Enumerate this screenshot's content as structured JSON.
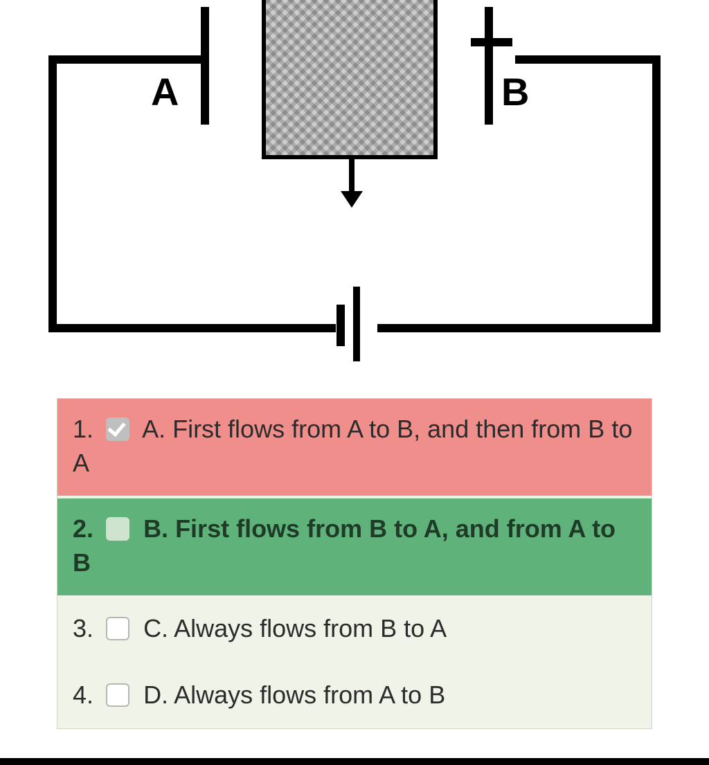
{
  "diagram": {
    "label_left": "A",
    "label_right": "B"
  },
  "answers": {
    "options": [
      {
        "number": "1.",
        "text": "A. First flows from A to B, and then from B to A",
        "state": "selected-wrong"
      },
      {
        "number": "2.",
        "text": "B. First flows from B to A, and from A to B",
        "state": "correct"
      },
      {
        "number": "3.",
        "text": "C. Always flows from B to A",
        "state": "none"
      },
      {
        "number": "4.",
        "text": "D. Always flows from A to B",
        "state": "none"
      }
    ],
    "colors": {
      "wrong_bg": "#ef8e8b",
      "correct_bg": "#5fb27a",
      "panel_bg": "#f0f3e8"
    }
  }
}
